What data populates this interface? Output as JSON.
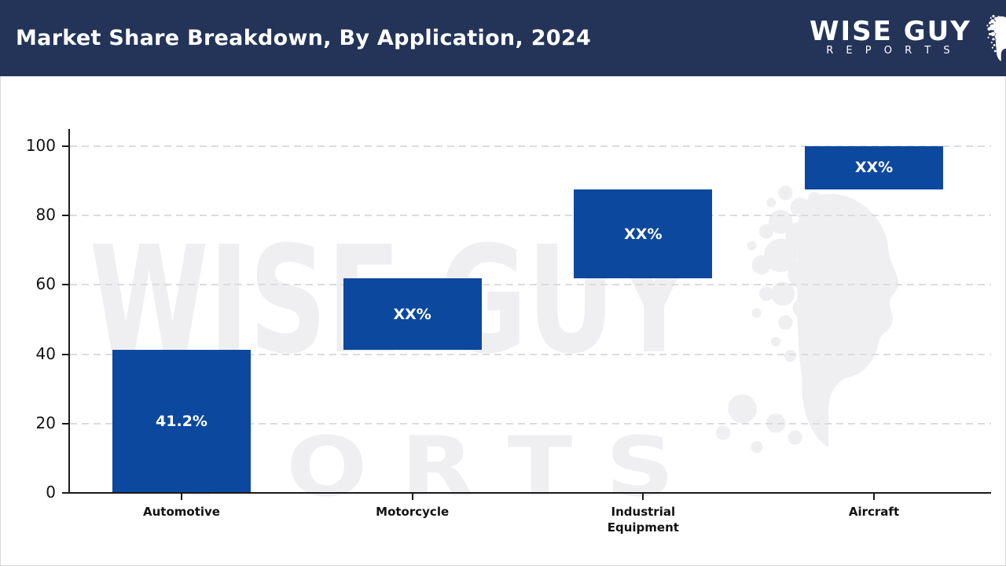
{
  "header": {
    "title": "Market Share Breakdown, By Application, 2024"
  },
  "logo": {
    "line1": "WISE GUY",
    "line2": "R E P O R T S",
    "face_icon": "head-profile-dots"
  },
  "watermark": {
    "line1": "WISE GUY",
    "line2": "P O R T S"
  },
  "colors": {
    "header_bg": "#233458",
    "bar": "#0c489e",
    "bar_label": "#ffffff",
    "grid": "#dcdcdc",
    "axis": "#1a1a1a",
    "tick_label": "#111111",
    "watermark": "#efeff2",
    "panel_border": "#d9d9d9"
  },
  "chart_data": {
    "type": "bar",
    "subtype": "waterfall",
    "title": "Market Share Breakdown, By Application, 2024",
    "xlabel": "",
    "ylabel": "",
    "categories": [
      "Automotive",
      "Motorcycle",
      "Industrial Equipment",
      "Aircraft"
    ],
    "segments": [
      {
        "category": "Automotive",
        "start": 0,
        "end": 41.2,
        "label": "41.2%"
      },
      {
        "category": "Motorcycle",
        "start": 41.2,
        "end": 61.8,
        "label": "XX%"
      },
      {
        "category": "Industrial Equipment",
        "start": 61.8,
        "end": 87.6,
        "label": "XX%"
      },
      {
        "category": "Aircraft",
        "start": 87.6,
        "end": 100,
        "label": "XX%"
      }
    ],
    "ylim": [
      0,
      100
    ],
    "yticks": [
      0,
      20,
      40,
      60,
      80,
      100
    ],
    "grid": true,
    "grid_style": "dashed",
    "legend": null
  }
}
